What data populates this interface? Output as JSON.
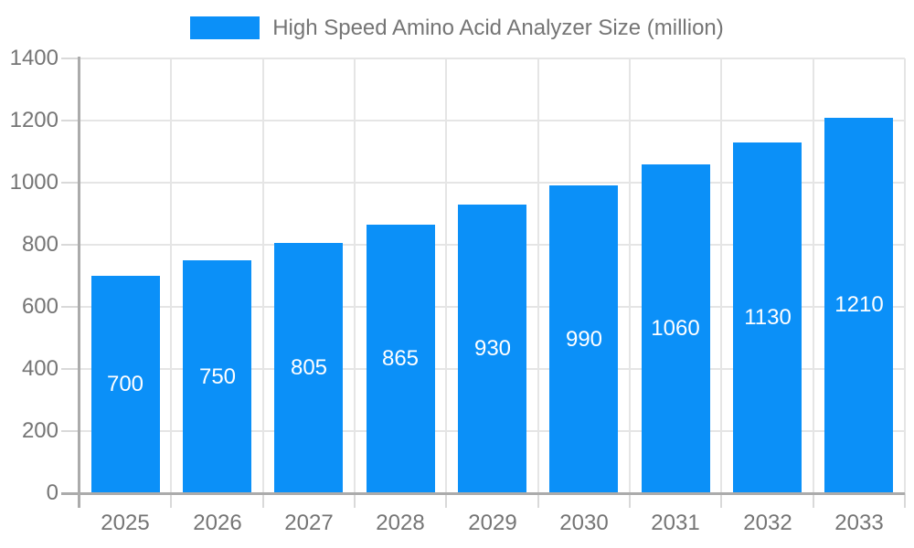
{
  "legend": {
    "label": "High Speed Amino Acid Analyzer Size (million)"
  },
  "chart_data": {
    "type": "bar",
    "title": "High Speed Amino Acid Analyzer Size (million)",
    "series_name": "High Speed Amino Acid Analyzer Size (million)",
    "categories": [
      "2025",
      "2026",
      "2027",
      "2028",
      "2029",
      "2030",
      "2031",
      "2032",
      "2033"
    ],
    "values": [
      700,
      750,
      805,
      865,
      930,
      990,
      1060,
      1130,
      1210
    ],
    "xlabel": "",
    "ylabel": "",
    "ylim": [
      0,
      1400
    ],
    "yticks": [
      0,
      200,
      400,
      600,
      800,
      1000,
      1200,
      1400
    ],
    "grid": true,
    "legend_position": "top",
    "value_labels_position": "inside-center",
    "colors": {
      "bar": "#0b90f8",
      "value_label": "#ffffff",
      "axis_line": "#ababab",
      "gridline": "#e5e5e5",
      "tick": "#d9d9d9",
      "axis_text": "#757575",
      "background": "#ffffff"
    }
  }
}
